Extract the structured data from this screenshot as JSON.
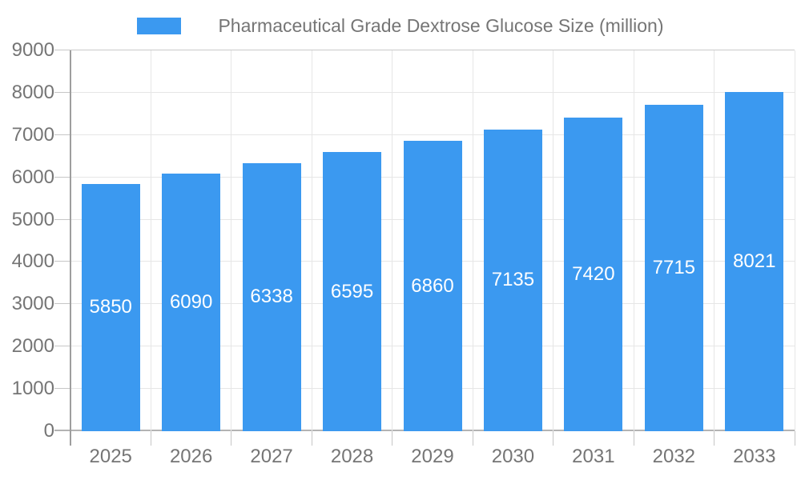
{
  "chart_data": {
    "type": "bar",
    "title": "Pharmaceutical Grade Dextrose Glucose Size (million)",
    "categories": [
      "2025",
      "2026",
      "2027",
      "2028",
      "2029",
      "2030",
      "2031",
      "2032",
      "2033"
    ],
    "values": [
      5850,
      6090,
      6338,
      6595,
      6860,
      7135,
      7420,
      7715,
      8021
    ],
    "xlabel": "",
    "ylabel": "",
    "ylim": [
      0,
      9000
    ],
    "ytick_step": 1000,
    "grid": true,
    "legend_position": "top",
    "bar_labels_inside": true,
    "colors": {
      "bar": "#3B99F0",
      "bar_label": "#FFFFFF",
      "axis_text": "#757575",
      "gridline": "#E6E6E6",
      "top_gridline": "#C9C9C9",
      "baseline": "#B3B3B3",
      "axis_line": "#9E9E9E",
      "tick": "#C6C6C6"
    }
  }
}
